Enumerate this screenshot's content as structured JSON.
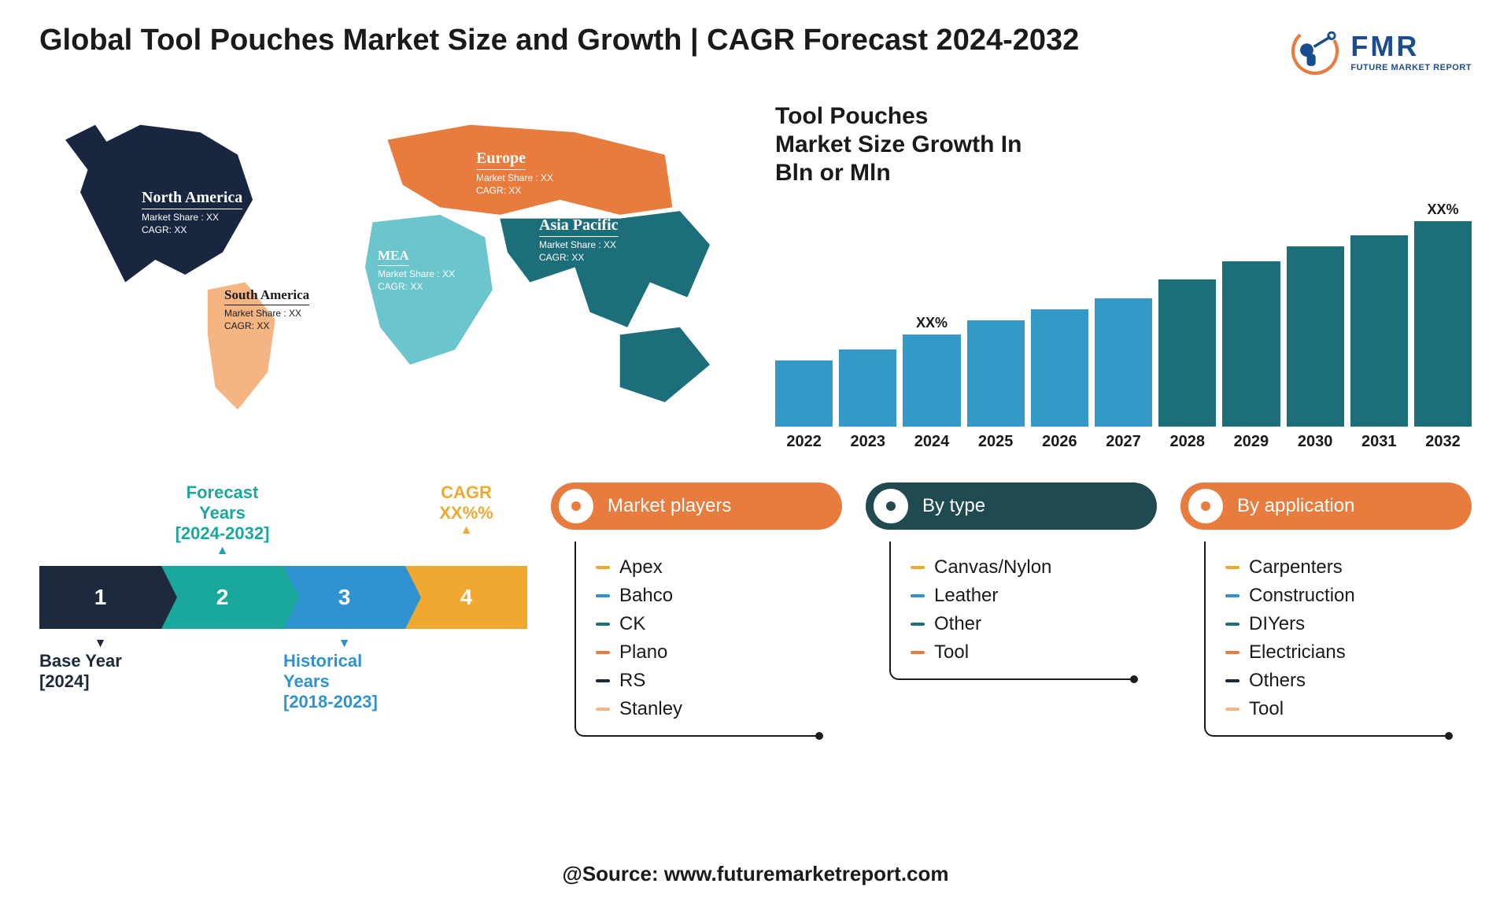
{
  "title": "Global Tool Pouches Market Size and Growth | CAGR Forecast 2024-2032",
  "logo": {
    "main": "FMR",
    "sub": "FUTURE MARKET REPORT"
  },
  "map": {
    "regions": [
      {
        "id": "na",
        "name": "North America",
        "share": "Market Share : XX",
        "cagr": "CAGR: XX",
        "fill": "#18273f"
      },
      {
        "id": "sa",
        "name": "South America",
        "share": "Market Share : XX",
        "cagr": "CAGR: XX",
        "fill": "#f5b583"
      },
      {
        "id": "eu",
        "name": "Europe",
        "share": "Market Share : XX",
        "cagr": "CAGR: XX",
        "fill": "#e87b3e"
      },
      {
        "id": "mea",
        "name": "MEA",
        "share": "Market Share : XX",
        "cagr": "CAGR: XX",
        "fill": "#6bc5cc"
      },
      {
        "id": "ap",
        "name": "Asia Pacific",
        "share": "Market Share : XX",
        "cagr": "CAGR: XX",
        "fill": "#1b6e7a"
      }
    ]
  },
  "chart": {
    "title": "Tool Pouches\nMarket Size Growth In\nBln or Mln",
    "type": "bar",
    "years": [
      "2022",
      "2023",
      "2024",
      "2025",
      "2026",
      "2027",
      "2028",
      "2029",
      "2030",
      "2031",
      "2032"
    ],
    "values": [
      90,
      105,
      125,
      145,
      160,
      175,
      200,
      225,
      245,
      260,
      280
    ],
    "ymax": 300,
    "bar_colors": [
      "#3498c9",
      "#3498c9",
      "#3498c9",
      "#3498c9",
      "#3498c9",
      "#3498c9",
      "#1b6e7a",
      "#1b6e7a",
      "#1b6e7a",
      "#1b6e7a",
      "#1b6e7a"
    ],
    "annotations": [
      {
        "index": 2,
        "text": "XX%"
      },
      {
        "index": 10,
        "text": "XX%"
      }
    ],
    "year_fontsize": 20,
    "title_fontsize": 30
  },
  "timeline": {
    "top": [
      {
        "slot": 1,
        "label": "Forecast Years",
        "sub": "[2024-2032]",
        "color": "#1aa89d"
      },
      {
        "slot": 3,
        "label": "CAGR",
        "sub": "XX%%",
        "color": "#f0a830"
      }
    ],
    "segments": [
      {
        "n": "1",
        "bg": "#1d2a3d"
      },
      {
        "n": "2",
        "bg": "#1aa89d"
      },
      {
        "n": "3",
        "bg": "#2f93d0"
      },
      {
        "n": "4",
        "bg": "#f0a830"
      }
    ],
    "bottom": [
      {
        "slot": 0,
        "label": "Base Year",
        "sub": "[2024]",
        "color": "#1d2a3d"
      },
      {
        "slot": 2,
        "label": "Historical Years",
        "sub": "[2018-2023]",
        "color": "#2f93d0"
      }
    ]
  },
  "categories": [
    {
      "title": "Market players",
      "bg": "#e87b3e",
      "items": [
        "Apex",
        "Bahco",
        "CK",
        "Plano",
        "RS",
        "Stanley"
      ],
      "tick_colors": [
        "#f0a830",
        "#2f93d0",
        "#1b6e7a",
        "#e87b3e",
        "#1d2a3d",
        "#f5b583"
      ]
    },
    {
      "title": "By type",
      "bg": "#1f4a4f",
      "items": [
        "Canvas/Nylon",
        "Leather",
        "Other",
        "Tool"
      ],
      "tick_colors": [
        "#f0a830",
        "#2f93d0",
        "#1b6e7a",
        "#e87b3e"
      ]
    },
    {
      "title": "By application",
      "bg": "#e87b3e",
      "items": [
        "Carpenters",
        "Construction",
        "DIYers",
        "Electricians",
        "Others",
        "Tool"
      ],
      "tick_colors": [
        "#f0a830",
        "#2f93d0",
        "#1b6e7a",
        "#e87b3e",
        "#1d2a3d",
        "#f5b583"
      ]
    }
  ],
  "source": "@Source: www.futuremarketreport.com"
}
